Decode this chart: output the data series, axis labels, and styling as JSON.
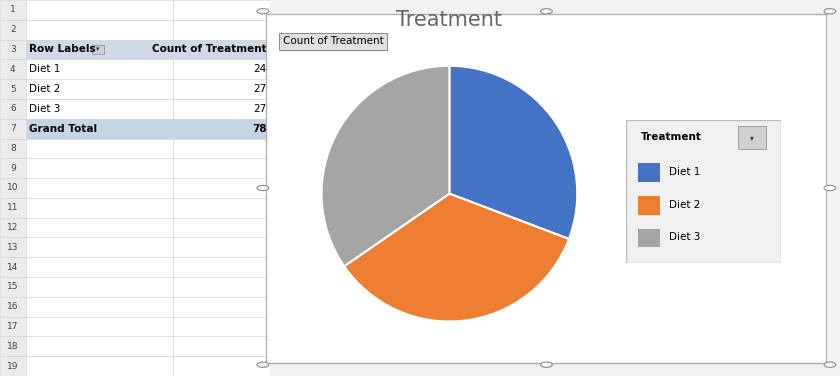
{
  "labels": [
    "Diet 1",
    "Diet 2",
    "Diet 3"
  ],
  "values": [
    24,
    27,
    27
  ],
  "colors": [
    "#4472C4",
    "#ED7D31",
    "#A5A5A5"
  ],
  "title": "Treatment",
  "legend_title": "Treatment",
  "chart_label": "Count of Treatment",
  "table_rows": [
    [
      "Diet 1",
      "24"
    ],
    [
      "Diet 2",
      "27"
    ],
    [
      "Diet 3",
      "27"
    ],
    [
      "Grand Total",
      "78"
    ]
  ],
  "n_rows": 19,
  "bg_color": "#F2F2F2",
  "cell_bg": "#FFFFFF",
  "grid_line_color": "#D4D4D4",
  "row_num_bg": "#EBEBEB",
  "header_bg": "#CFD9EA",
  "grand_total_bg": "#C5D5E8",
  "start_angle": 90,
  "pie_aspect": 0.78
}
